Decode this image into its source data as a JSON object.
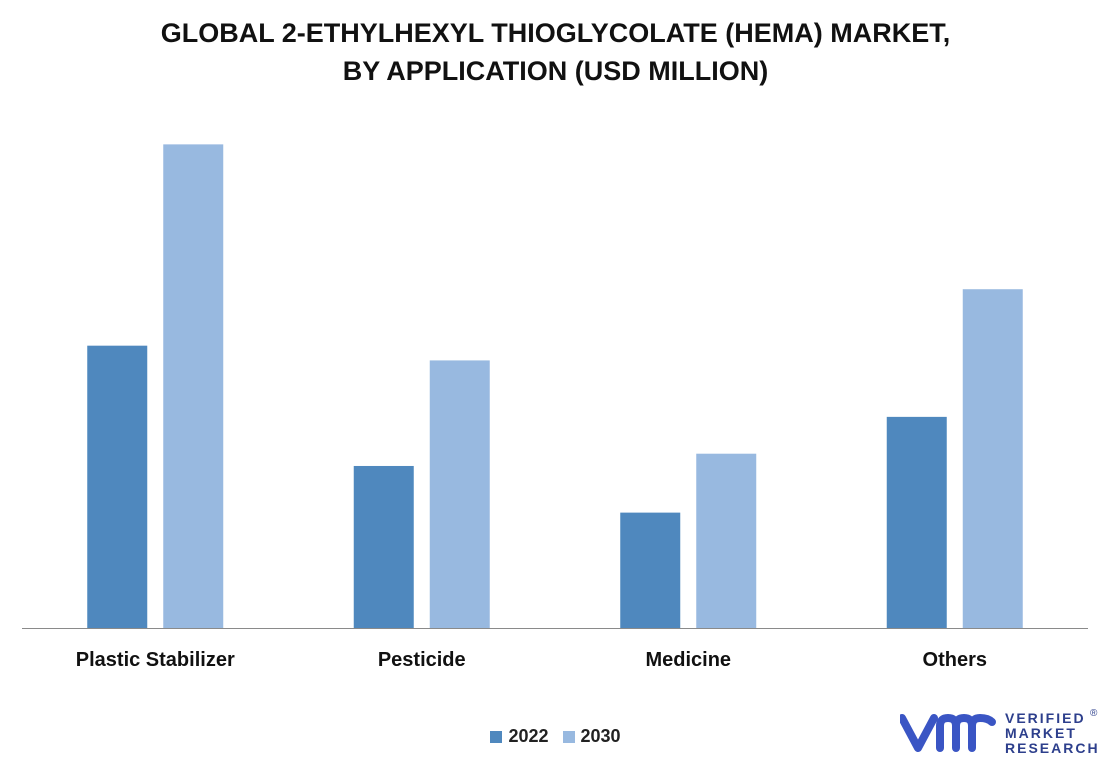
{
  "chart_data": {
    "type": "bar",
    "title_lines": [
      "GLOBAL 2-ETHYLHEXYL THIOGLYCOLATE (HEMA) MARKET,",
      "BY APPLICATION (USD MILLION)"
    ],
    "categories": [
      "Plastic Stabilizer",
      "Pesticide",
      "Medicine",
      "Others"
    ],
    "series": [
      {
        "name": "2022",
        "values": [
          575,
          330,
          235,
          430
        ],
        "color": "#4f88be"
      },
      {
        "name": "2030",
        "values": [
          985,
          545,
          355,
          690
        ],
        "color": "#98b9e0"
      }
    ],
    "ylim": [
      0,
      1000
    ],
    "grid": false,
    "legend_position": "bottom-center"
  },
  "brand": {
    "line1": "VERIFIED",
    "line2": "MARKET",
    "line3": "RESEARCH",
    "registered": "®",
    "color_text": "#2d3f8c",
    "color_mark": "#3a55c4"
  }
}
